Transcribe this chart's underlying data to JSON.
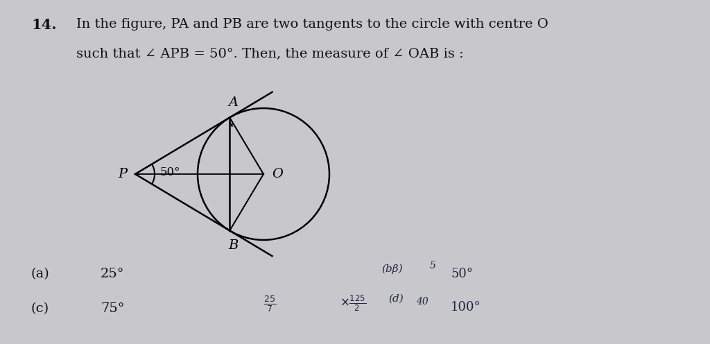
{
  "title_num": "14.",
  "title_text": "In the figure, PA and PB are two tangents to the circle with centre O",
  "title_text2": "such that ∠ APB = 50°. Then, the measure of ∠ OAB is :",
  "bg_color": "#c8c8cc",
  "text_color": "#111111",
  "A_label": "A",
  "B_label": "B",
  "P_label": "P",
  "O_label": "O",
  "angle_label": "50°",
  "opt_a": "(a)",
  "opt_a_val": "25°",
  "opt_c": "(c)",
  "opt_c_val": "75°",
  "opt_b_val": "50°",
  "opt_d_val": "100°"
}
